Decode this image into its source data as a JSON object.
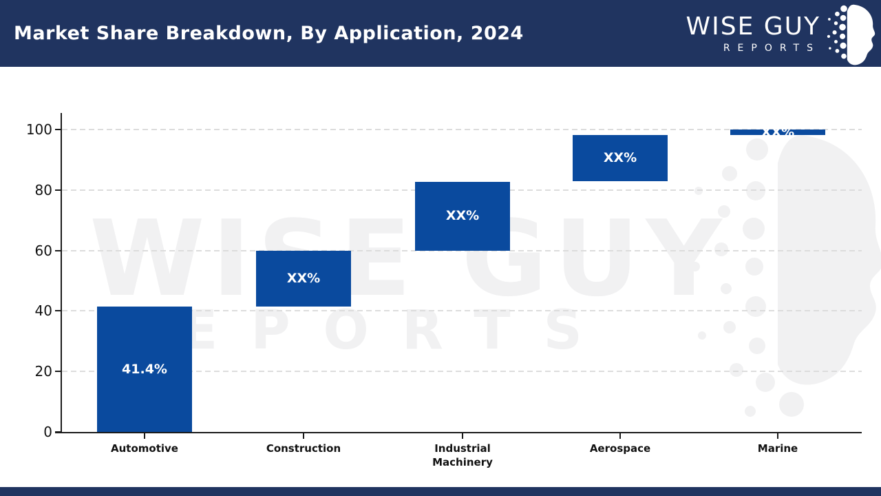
{
  "header": {
    "title": "Market Share Breakdown, By Application, 2024",
    "logo": {
      "line1": "WISE GUY",
      "line2": "REPORTS"
    }
  },
  "watermark": {
    "line1": "WISE GUY",
    "line2": "REPORTS"
  },
  "colors": {
    "header_bg": "#203460",
    "bar": "#0a4a9e",
    "grid": "#dcdcdc",
    "axis": "#1a1a1a",
    "bar_label": "#ffffff",
    "tick_label": "#111111"
  },
  "chart_data": {
    "type": "bar",
    "subtype": "waterfall",
    "title": "Market Share Breakdown, By Application, 2024",
    "xlabel": "",
    "ylabel": "",
    "ylim": [
      0,
      105
    ],
    "yticks": [
      0,
      20,
      40,
      60,
      80,
      100
    ],
    "grid": "horizontal-dashed",
    "legend": "none",
    "categories": [
      "Automotive",
      "Construction",
      "Industrial Machinery",
      "Aerospace",
      "Marine"
    ],
    "segments": [
      {
        "category": "Automotive",
        "category_lines": [
          "Automotive"
        ],
        "start": 0,
        "end": 41.4,
        "label": "41.4%"
      },
      {
        "category": "Construction",
        "category_lines": [
          "Construction"
        ],
        "start": 41.4,
        "end": 60.0,
        "label": "XX%"
      },
      {
        "category": "Industrial Machinery",
        "category_lines": [
          "Industrial",
          "Machinery"
        ],
        "start": 60.0,
        "end": 82.8,
        "label": "XX%"
      },
      {
        "category": "Aerospace",
        "category_lines": [
          "Aerospace"
        ],
        "start": 82.8,
        "end": 98.1,
        "label": "XX%"
      },
      {
        "category": "Marine",
        "category_lines": [
          "Marine"
        ],
        "start": 98.1,
        "end": 100.0,
        "label": "XX%"
      }
    ]
  }
}
